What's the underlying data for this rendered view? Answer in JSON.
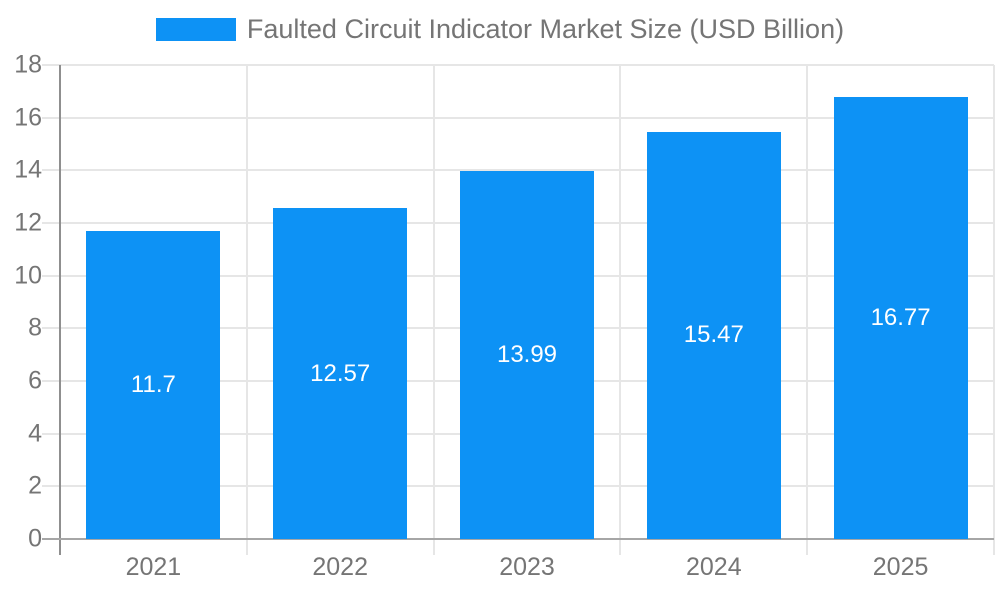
{
  "legend": {
    "label": "Faulted Circuit Indicator Market Size (USD Billion)",
    "swatch_color": "#0D92F5"
  },
  "chart_data": {
    "type": "bar",
    "title": "Faulted Circuit Indicator Market Size (USD Billion)",
    "categories": [
      "2021",
      "2022",
      "2023",
      "2024",
      "2025"
    ],
    "values": [
      11.7,
      12.57,
      13.99,
      15.47,
      16.77
    ],
    "value_labels": [
      "11.7",
      "12.57",
      "13.99",
      "15.47",
      "16.77"
    ],
    "series": [
      {
        "name": "Faulted Circuit Indicator Market Size (USD Billion)",
        "values": [
          11.7,
          12.57,
          13.99,
          15.47,
          16.77
        ]
      }
    ],
    "xlabel": "",
    "ylabel": "",
    "ylim": [
      0,
      18
    ],
    "ytick_step": 2,
    "yticks": [
      0,
      2,
      4,
      6,
      8,
      10,
      12,
      14,
      16,
      18
    ],
    "grid": true,
    "legend_position": "top",
    "colors": {
      "bar": "#0D92F5",
      "grid_line": "#e6e6e6",
      "axis_line_y": "#8f8f8f",
      "axis_line_x": "#a6a6a6",
      "tick_label": "#757575",
      "value_label": "#ffffff",
      "background": "#ffffff"
    }
  }
}
